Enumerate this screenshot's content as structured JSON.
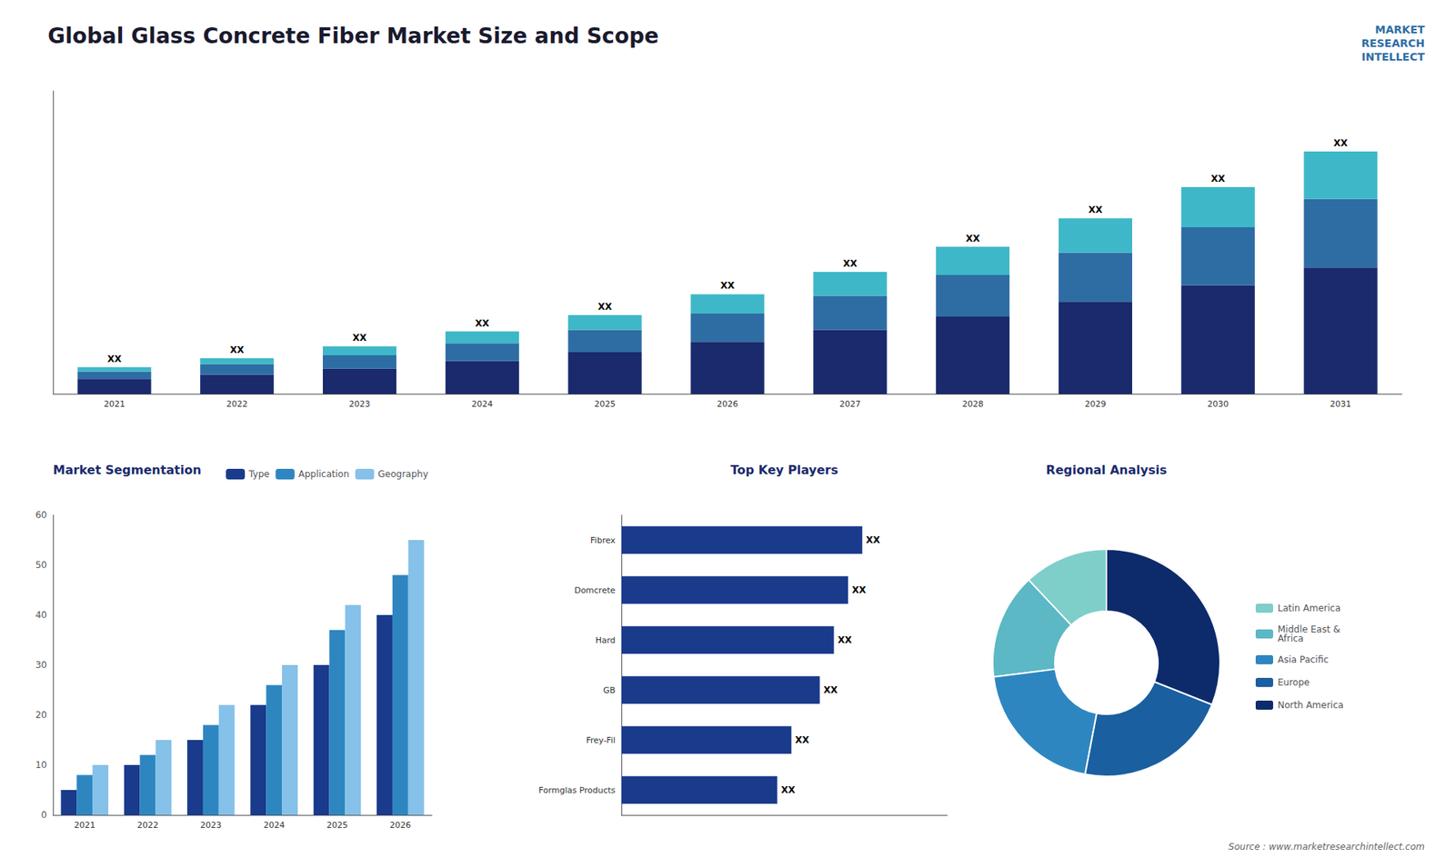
{
  "title": "Global Glass Concrete Fiber Market Size and Scope",
  "annotations": [
    "MARKET\nRESEARCH\nINTELLECT",
    "Source : www.marketresearchintellect.com"
  ],
  "chart_data": [
    {
      "type": "bar",
      "stacked": true,
      "categories": [
        "2021",
        "2022",
        "2023",
        "2024",
        "2025",
        "2026",
        "2027",
        "2028",
        "2029",
        "2030",
        "2031"
      ],
      "series": [
        {
          "color": "#1a2a6c",
          "values": [
            1.0,
            1.3,
            1.7,
            2.2,
            2.8,
            3.5,
            4.3,
            5.2,
            6.2,
            7.3,
            8.5
          ]
        },
        {
          "color": "#2e6da4",
          "values": [
            0.5,
            0.7,
            0.9,
            1.2,
            1.5,
            1.9,
            2.3,
            2.8,
            3.3,
            3.9,
            4.6
          ]
        },
        {
          "color": "#3eb8c8",
          "values": [
            0.3,
            0.4,
            0.6,
            0.8,
            1.0,
            1.3,
            1.6,
            1.9,
            2.3,
            2.7,
            3.2
          ]
        }
      ],
      "annotations": [
        "XX",
        "XX",
        "XX",
        "XX",
        "XX",
        "XX",
        "XX",
        "XX",
        "XX",
        "XX",
        "XX"
      ],
      "ylim": [
        0,
        20.375
      ],
      "tick_labels": "x",
      "grid": false
    },
    {
      "type": "bar",
      "title": "Market Segmentation",
      "categories": [
        "2021",
        "2022",
        "2023",
        "2024",
        "2025",
        "2026"
      ],
      "series": [
        {
          "name": "Type",
          "color": "#1a3a8c",
          "values": [
            5,
            10,
            15,
            22,
            30,
            40
          ]
        },
        {
          "name": "Application",
          "color": "#2e86c1",
          "values": [
            8,
            12,
            18,
            26,
            37,
            48
          ]
        },
        {
          "name": "Geography",
          "color": "#85c1e9",
          "values": [
            10,
            15,
            22,
            30,
            42,
            55
          ]
        }
      ],
      "ylim": [
        0,
        60
      ],
      "yticks": [
        0,
        10,
        20,
        30,
        40,
        50,
        60
      ],
      "legend": "upper right",
      "grid": false
    },
    {
      "type": "bar",
      "orientation": "horizontal",
      "title": "Top Key Players",
      "categories": [
        "Fibrex",
        "Domcrete",
        "Hard",
        "GB",
        "Frey-Fil",
        "Formglas Products"
      ],
      "values": [
        85,
        80,
        75,
        70,
        60,
        55
      ],
      "color": "#1a3a8c",
      "annotations": [
        "XX",
        "XX",
        "XX",
        "XX",
        "XX",
        "XX"
      ],
      "xlim": [
        0,
        115
      ],
      "tick_labels": "y",
      "grid": false
    },
    {
      "type": "pie",
      "title": "Regional Analysis",
      "categories": [
        "Latin America",
        "Middle East &\nAfrica",
        "Asia Pacific",
        "Europe",
        "North America"
      ],
      "values": [
        12,
        15,
        20,
        22,
        31
      ],
      "colors": [
        "#7ececa",
        "#5bb8c4",
        "#2e86c1",
        "#1a5fa0",
        "#0d2b6b"
      ],
      "legend": "right"
    }
  ]
}
